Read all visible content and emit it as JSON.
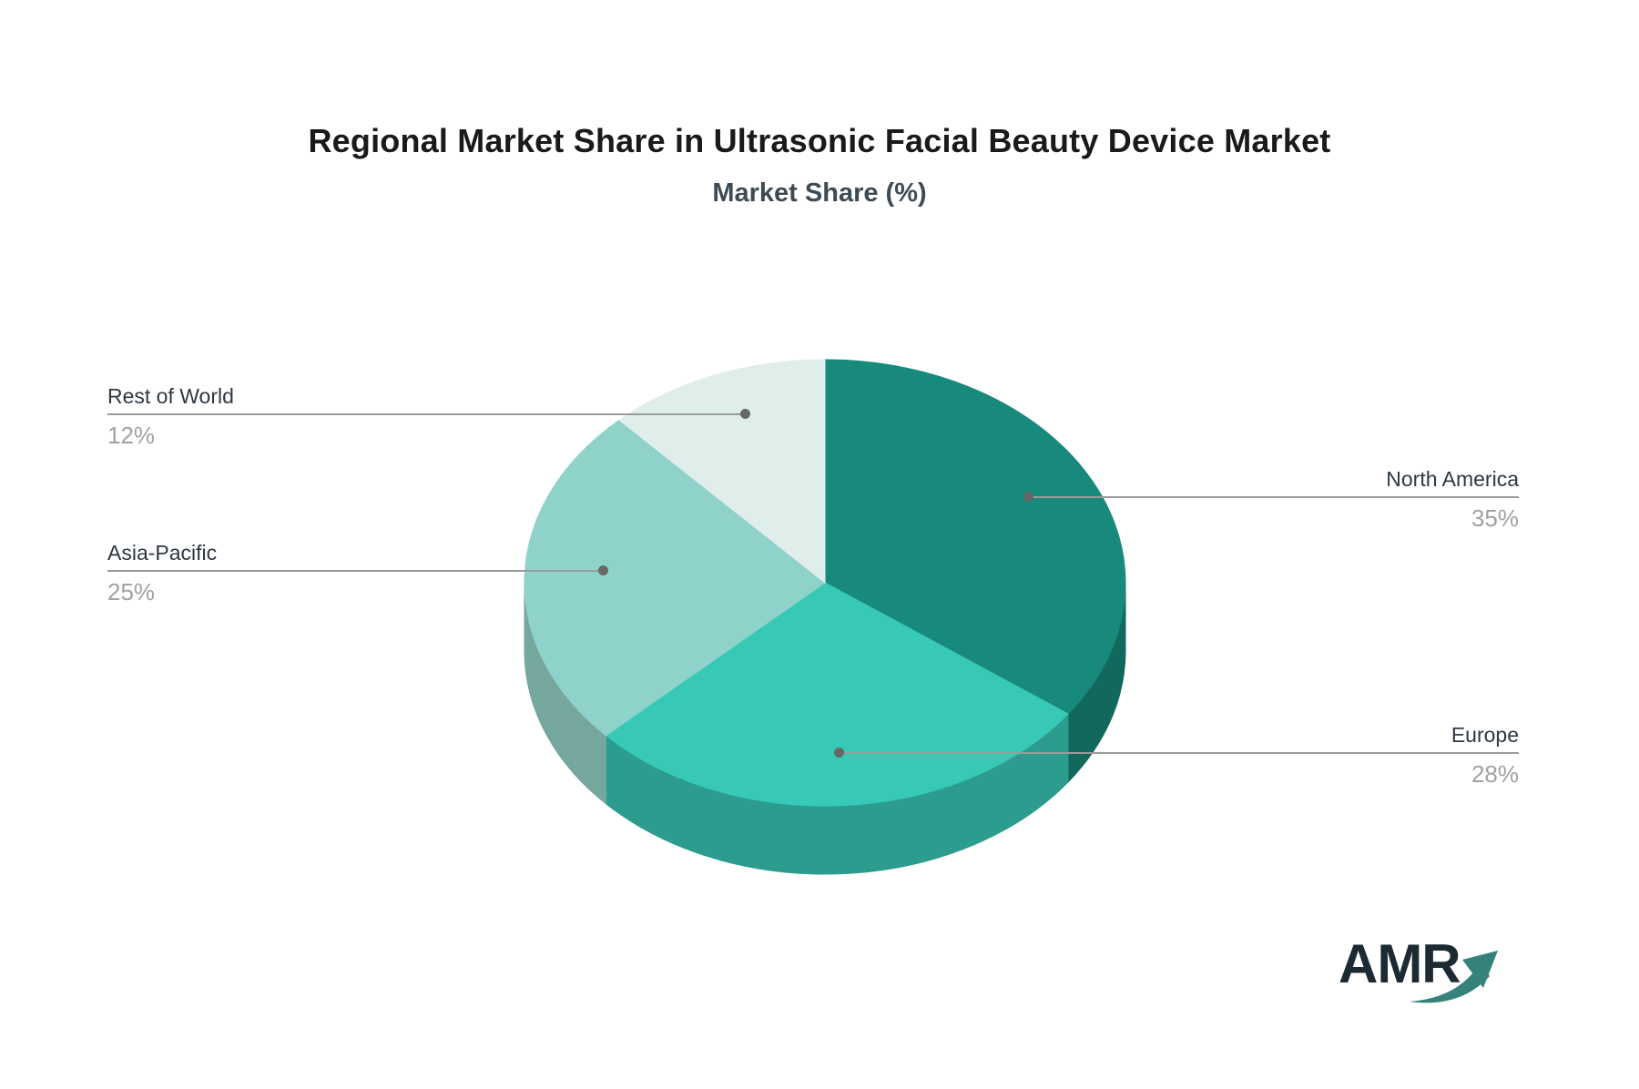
{
  "chart_data": {
    "type": "pie",
    "title": "Regional Market Share in Ultrasonic Facial Beauty Device Market",
    "subtitle": "Market Share (%)",
    "categories": [
      "North America",
      "Europe",
      "Asia-Pacific",
      "Rest of World"
    ],
    "values": [
      35,
      28,
      25,
      12
    ],
    "labels": [
      "35%",
      "28%",
      "25%",
      "12%"
    ],
    "colors": [
      "#178a7c",
      "#38c9b6",
      "#8fd2ca",
      "#dfedeb"
    ],
    "side_colors": [
      "#11695d",
      "#2b9c8d",
      "#76a79e",
      "#dfedeb"
    ],
    "start_angle_deg": 0,
    "direction": "clockwise",
    "style": "3d-pie",
    "legend": "none",
    "background": "#ffffff"
  },
  "logo": {
    "text": "AMR",
    "arrow_color": "#35827b"
  }
}
